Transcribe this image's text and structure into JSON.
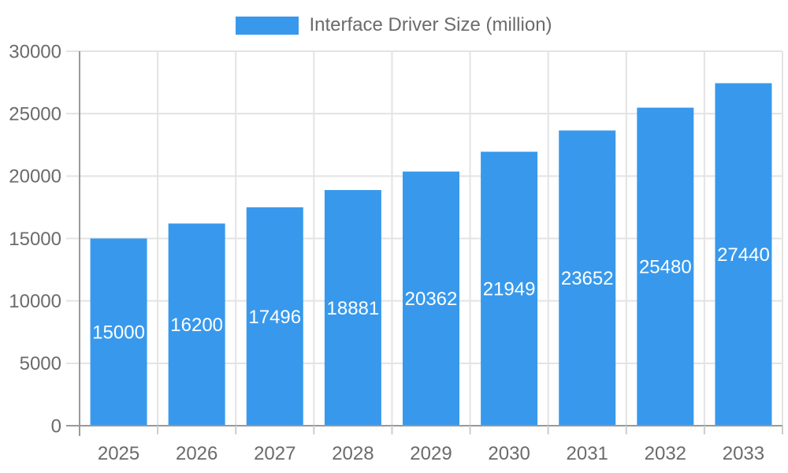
{
  "legend": {
    "label": "Interface Driver Size (million)"
  },
  "chart_data": {
    "type": "bar",
    "title": "",
    "xlabel": "",
    "ylabel": "",
    "categories": [
      "2025",
      "2026",
      "2027",
      "2028",
      "2029",
      "2030",
      "2031",
      "2032",
      "2033"
    ],
    "values": [
      15000,
      16200,
      17496,
      18881,
      20362,
      21949,
      23652,
      25480,
      27440
    ],
    "series_name": "Interface Driver Size (million)",
    "ylim": [
      0,
      30000
    ],
    "y_ticks": [
      0,
      5000,
      10000,
      15000,
      20000,
      25000,
      30000
    ],
    "grid": true,
    "legend_position": "top-center",
    "bar_color": "#3899EC",
    "value_label_color": "#ffffff",
    "axis_color": "#999999",
    "x_tick_color": "#cccccc",
    "grid_color": "#e3e3e3",
    "tick_label_color": "#6b6b6b"
  }
}
